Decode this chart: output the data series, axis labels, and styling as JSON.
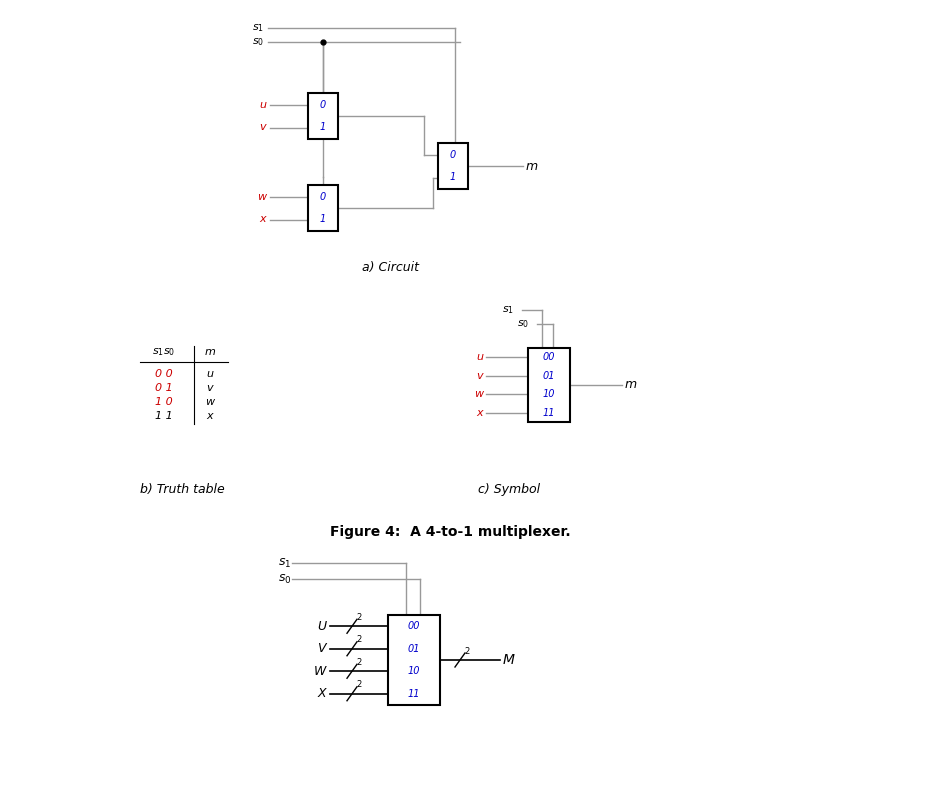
{
  "bg_color": "#ffffff",
  "line_color": "#999999",
  "black": "#000000",
  "red": "#cc0000",
  "blue": "#0000cc",
  "title_a": "a) Circuit",
  "title_b": "b) Truth table",
  "title_c": "c) Symbol",
  "figure_caption": "Figure 4:  A 4-to-1 multiplexer.",
  "truth_table_rows": [
    [
      "0 0",
      "red",
      "u",
      "black"
    ],
    [
      "0 1",
      "red",
      "v",
      "black"
    ],
    [
      "1 0",
      "red",
      "w",
      "black"
    ],
    [
      "1 1",
      "black",
      "x",
      "black"
    ]
  ]
}
